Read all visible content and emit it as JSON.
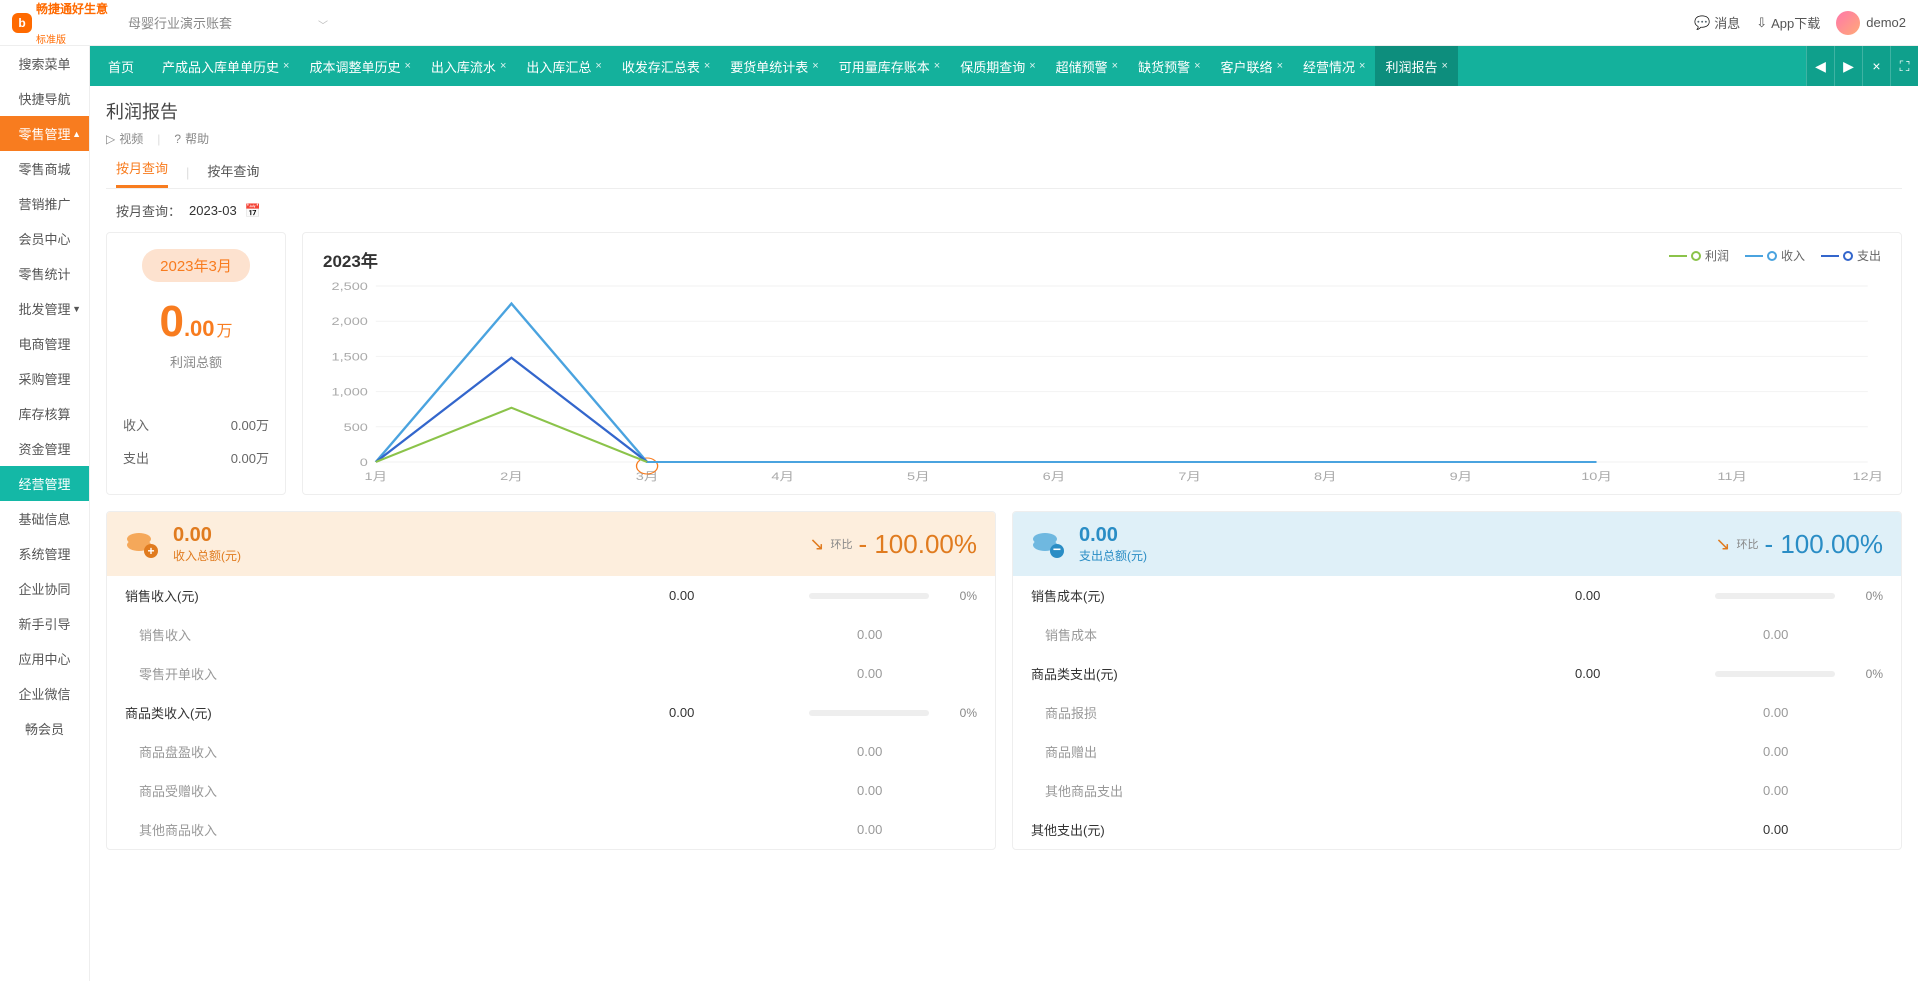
{
  "colors": {
    "orange": "#f87c1f",
    "teal": "#14b19c",
    "tealDark": "#0d8e7d",
    "blue": "#2a8dc5",
    "income_line": "#4aa3df",
    "expense_line": "#3366cc",
    "profit_line": "#8bc34a"
  },
  "header": {
    "logo_text": "畅捷通好生意",
    "logo_sub": "标准版",
    "account_name": "母婴行业演示账套",
    "msg": "消息",
    "app": "App下载",
    "user": "demo2"
  },
  "sidebar": [
    {
      "label": "搜索菜单",
      "active": ""
    },
    {
      "label": "快捷导航",
      "active": ""
    },
    {
      "label": "零售管理",
      "active": "orange",
      "caret": "▲"
    },
    {
      "label": "零售商城",
      "active": ""
    },
    {
      "label": "营销推广",
      "active": ""
    },
    {
      "label": "会员中心",
      "active": ""
    },
    {
      "label": "零售统计",
      "active": ""
    },
    {
      "label": "批发管理",
      "active": "",
      "caret": "▼"
    },
    {
      "label": "电商管理",
      "active": ""
    },
    {
      "label": "采购管理",
      "active": ""
    },
    {
      "label": "库存核算",
      "active": ""
    },
    {
      "label": "资金管理",
      "active": ""
    },
    {
      "label": "经营管理",
      "active": "teal"
    },
    {
      "label": "基础信息",
      "active": ""
    },
    {
      "label": "系统管理",
      "active": ""
    },
    {
      "label": "企业协同",
      "active": ""
    },
    {
      "label": "新手引导",
      "active": ""
    },
    {
      "label": "应用中心",
      "active": ""
    },
    {
      "label": "企业微信",
      "active": ""
    },
    {
      "label": "畅会员",
      "active": ""
    }
  ],
  "tabs": [
    {
      "label": "首页",
      "closable": false
    },
    {
      "label": "产成品入库单单历史",
      "closable": true
    },
    {
      "label": "成本调整单历史",
      "closable": true
    },
    {
      "label": "出入库流水",
      "closable": true
    },
    {
      "label": "出入库汇总",
      "closable": true
    },
    {
      "label": "收发存汇总表",
      "closable": true
    },
    {
      "label": "要货单统计表",
      "closable": true
    },
    {
      "label": "可用量库存账本",
      "closable": true
    },
    {
      "label": "保质期查询",
      "closable": true
    },
    {
      "label": "超储预警",
      "closable": true
    },
    {
      "label": "缺货预警",
      "closable": true
    },
    {
      "label": "客户联络",
      "closable": true
    },
    {
      "label": "经营情况",
      "closable": true
    },
    {
      "label": "利润报告",
      "closable": true,
      "active": true
    }
  ],
  "page": {
    "title": "利润报告",
    "link_video": "视频",
    "link_help": "帮助",
    "subtabs": [
      {
        "label": "按月查询",
        "active": true
      },
      {
        "label": "按年查询",
        "active": false
      }
    ],
    "filter_label": "按月查询：",
    "filter_value": "2023-03"
  },
  "summary": {
    "pill": "2023年3月",
    "big_int": "0",
    "big_frac": ".00",
    "big_unit": "万",
    "big_label": "利润总额",
    "rows": [
      {
        "k": "收入",
        "v": "0.00万"
      },
      {
        "k": "支出",
        "v": "0.00万"
      }
    ]
  },
  "chart": {
    "title": "2023年",
    "legend": [
      {
        "label": "利润",
        "color": "#8bc34a"
      },
      {
        "label": "收入",
        "color": "#4aa3df"
      },
      {
        "label": "支出",
        "color": "#3366cc"
      }
    ],
    "y_ticks": [
      0,
      500,
      1000,
      1500,
      2000,
      2500
    ],
    "y_max": 2500,
    "x_labels": [
      "1月",
      "2月",
      "3月",
      "4月",
      "5月",
      "6月",
      "7月",
      "8月",
      "9月",
      "10月",
      "11月",
      "12月"
    ],
    "current_month_index": 2,
    "series": {
      "income": [
        0,
        2250,
        0,
        0,
        0,
        0,
        0,
        0,
        0,
        0,
        0,
        0
      ],
      "expense": [
        0,
        1480,
        0,
        0,
        0,
        0,
        0,
        0,
        0,
        0,
        0,
        0
      ],
      "profit": [
        0,
        770,
        0,
        0,
        0,
        0,
        0,
        0,
        0,
        0,
        0,
        0
      ]
    },
    "income_visible_until_index": 9
  },
  "panels": [
    {
      "type": "orange",
      "value": "0.00",
      "label": "收入总额(元)",
      "hb": "环比",
      "pct": "- 100.00%",
      "rows": [
        {
          "name": "销售收入(元)",
          "val": "0.00",
          "bar": true,
          "pct": "0%"
        },
        {
          "name": "销售收入",
          "val": "0.00",
          "sub": true
        },
        {
          "name": "零售开单收入",
          "val": "0.00",
          "sub": true
        },
        {
          "name": "商品类收入(元)",
          "val": "0.00",
          "bar": true,
          "pct": "0%"
        },
        {
          "name": "商品盘盈收入",
          "val": "0.00",
          "sub": true
        },
        {
          "name": "商品受赠收入",
          "val": "0.00",
          "sub": true
        },
        {
          "name": "其他商品收入",
          "val": "0.00",
          "sub": true
        }
      ]
    },
    {
      "type": "blue",
      "value": "0.00",
      "label": "支出总额(元)",
      "hb": "环比",
      "pct": "- 100.00%",
      "rows": [
        {
          "name": "销售成本(元)",
          "val": "0.00",
          "bar": true,
          "pct": "0%"
        },
        {
          "name": "销售成本",
          "val": "0.00",
          "sub": true
        },
        {
          "name": "商品类支出(元)",
          "val": "0.00",
          "bar": true,
          "pct": "0%"
        },
        {
          "name": "商品报损",
          "val": "0.00",
          "sub": true
        },
        {
          "name": "商品赠出",
          "val": "0.00",
          "sub": true
        },
        {
          "name": "其他商品支出",
          "val": "0.00",
          "sub": true
        },
        {
          "name": "其他支出(元)",
          "val": "0.00",
          "sub": false
        }
      ]
    }
  ]
}
